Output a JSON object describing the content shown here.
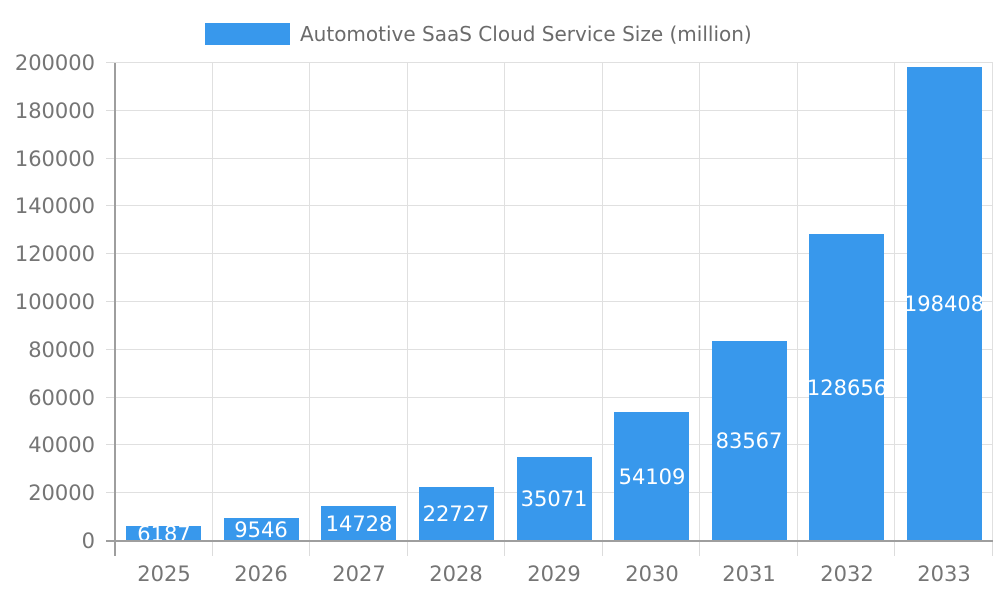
{
  "legend": {
    "label": "Automotive SaaS Cloud Service Size (million)"
  },
  "colors": {
    "bar": "#3898ec",
    "grid": "#e0e0e0",
    "tick": "#dcdcdc",
    "axis": "#9e9e9e",
    "tick_label": "#757575",
    "legend_text": "#6b6b6b",
    "value_label": "#ffffff"
  },
  "chart_data": {
    "type": "bar",
    "title": "Automotive SaaS Cloud Service Size (million)",
    "categories": [
      "2025",
      "2026",
      "2027",
      "2028",
      "2029",
      "2030",
      "2031",
      "2032",
      "2033"
    ],
    "values": [
      6187,
      9546,
      14728,
      22727,
      35071,
      54109,
      83567,
      128656,
      198408
    ],
    "series": [
      {
        "name": "Automotive SaaS Cloud Service Size (million)",
        "values": [
          6187,
          9546,
          14728,
          22727,
          35071,
          54109,
          83567,
          128656,
          198408
        ]
      }
    ],
    "xlabel": "",
    "ylabel": "",
    "ylim": [
      0,
      200000
    ],
    "yticks": [
      0,
      20000,
      40000,
      60000,
      80000,
      100000,
      120000,
      140000,
      160000,
      180000,
      200000
    ],
    "grid": true,
    "legend_position": "top",
    "bar_labels_visible": true,
    "bar_label_position": "center-inside"
  }
}
